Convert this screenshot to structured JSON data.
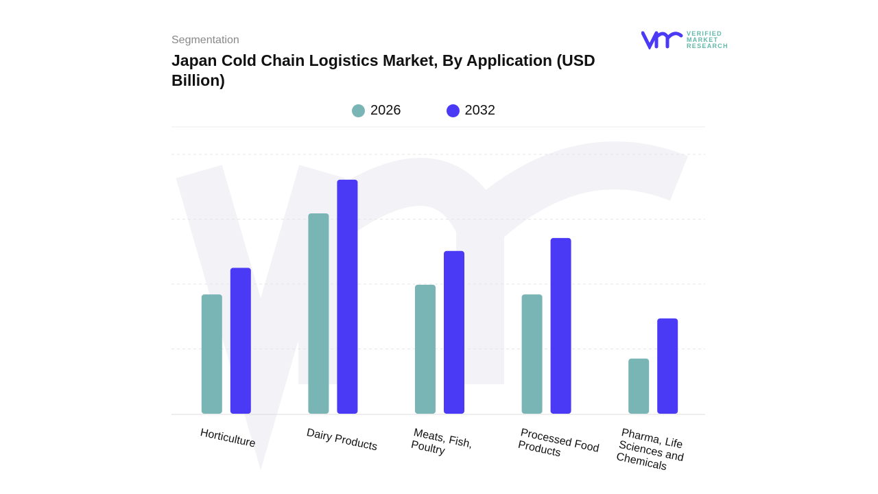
{
  "header": {
    "segment_label": "Segmentation",
    "title": "Japan Cold Chain Logistics Market, By Application (USD Billion)"
  },
  "logo": {
    "text": "VERIFIED MARKET RESEARCH",
    "mark": "vmr"
  },
  "chart_data": {
    "type": "bar",
    "title": "Japan Cold Chain Logistics Market, By Application (USD Billion)",
    "categories": [
      "Horticulture",
      "Dairy Products",
      "Meats, Fish, Poultry",
      "Processed Food Products",
      "Pharma, Life Sciences and Chemicals"
    ],
    "series": [
      {
        "name": "2026",
        "color": "#7ab5b6",
        "values": [
          1.84,
          3.09,
          1.99,
          1.84,
          0.85
        ]
      },
      {
        "name": "2032",
        "color": "#4b3af5",
        "values": [
          2.25,
          3.61,
          2.51,
          2.71,
          1.47
        ]
      }
    ],
    "ylim": [
      0,
      4
    ],
    "grid": true,
    "legend": "top",
    "y_axis_labels_shown": false
  }
}
